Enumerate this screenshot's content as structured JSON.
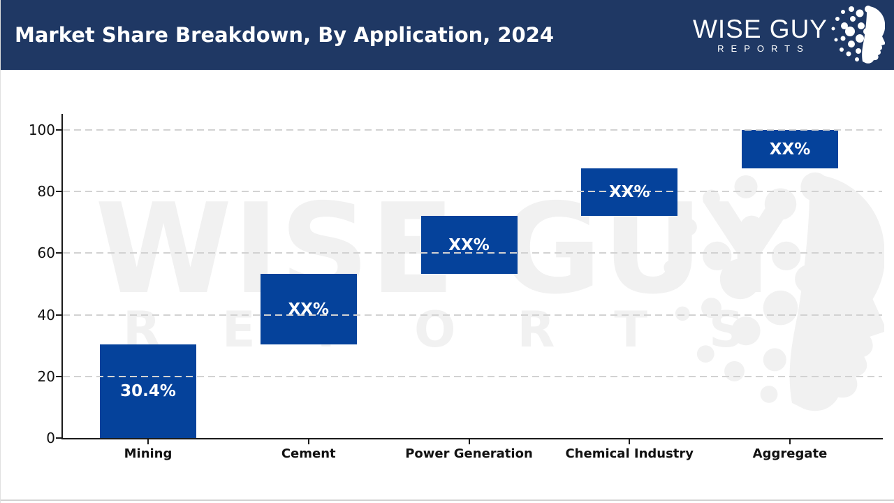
{
  "header": {
    "title": "Market Share Breakdown, By Application, 2024",
    "bg_color": "#1f3864",
    "logo": {
      "line1": "WISE GUY",
      "line2": "REPORTS"
    }
  },
  "watermark": {
    "line1": "WISE GUY",
    "line2": "REPORTS"
  },
  "chart_data": {
    "type": "bar",
    "subtype": "waterfall",
    "title": "Market Share Breakdown, By Application, 2024",
    "categories": [
      "Mining",
      "Cement",
      "Power Generation",
      "Chemical Industry",
      "Aggregate"
    ],
    "segments": [
      {
        "category": "Mining",
        "start": 0,
        "end": 30.4,
        "label": "30.4%"
      },
      {
        "category": "Cement",
        "start": 30.4,
        "end": 53.2,
        "label": "XX%"
      },
      {
        "category": "Power Generation",
        "start": 53.2,
        "end": 72.1,
        "label": "XX%"
      },
      {
        "category": "Chemical Industry",
        "start": 72.1,
        "end": 87.4,
        "label": "XX%"
      },
      {
        "category": "Aggregate",
        "start": 87.4,
        "end": 100,
        "label": "XX%"
      }
    ],
    "y_ticks": [
      0,
      20,
      40,
      60,
      80,
      100
    ],
    "ylim": [
      0,
      105
    ],
    "xlabel": "",
    "ylabel": "",
    "grid": true,
    "gridline_style": "dashed",
    "gridline_color": "#d2d2d2",
    "bar_color": "#05429b",
    "label_color": "#ffffff",
    "legend": "none"
  }
}
